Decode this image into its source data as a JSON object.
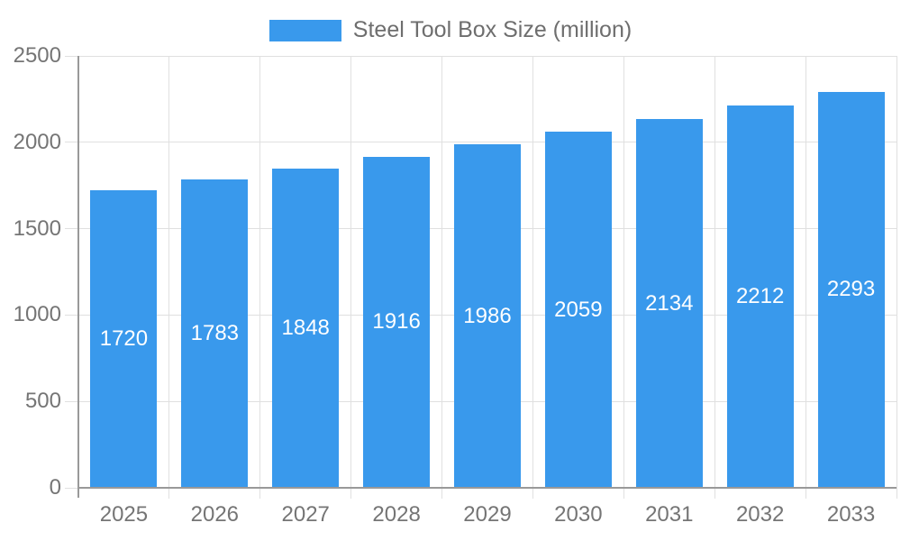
{
  "chart_data": {
    "type": "bar",
    "title": "",
    "legend": "Steel Tool Box Size (million)",
    "categories": [
      "2025",
      "2026",
      "2027",
      "2028",
      "2029",
      "2030",
      "2031",
      "2032",
      "2033"
    ],
    "values": [
      1720,
      1783,
      1848,
      1916,
      1986,
      2059,
      2134,
      2212,
      2293
    ],
    "ylim": [
      0,
      2500
    ],
    "yticks": [
      0,
      500,
      1000,
      1500,
      2000,
      2500
    ],
    "xlabel": "",
    "ylabel": "",
    "grid": true,
    "legend_position": "top-center",
    "bar_labels_position": "inside-center",
    "colors": {
      "bar": "#3999EC",
      "grid": "#E0E0E0",
      "axis_line": "#999999",
      "axis_text": "#757575",
      "legend_text": "#6E6E6E",
      "bar_label": "#FFFFFF",
      "background": "#FFFFFF"
    }
  }
}
